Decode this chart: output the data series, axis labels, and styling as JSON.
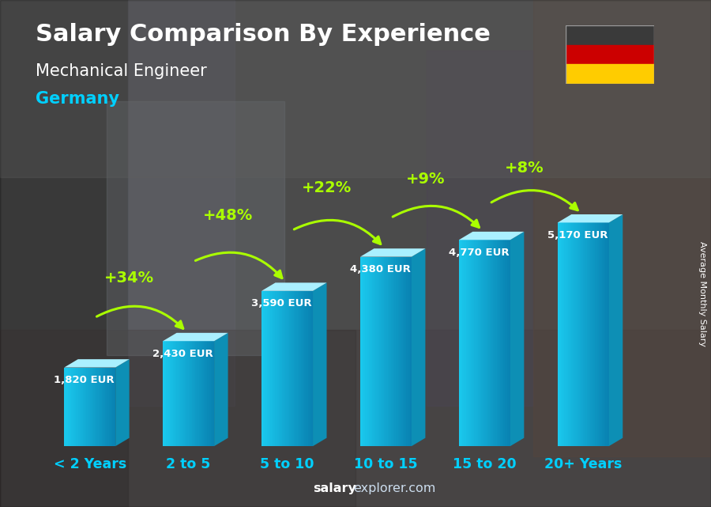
{
  "title_line1": "Salary Comparison By Experience",
  "title_line2": "Mechanical Engineer",
  "title_line3": "Germany",
  "categories": [
    "< 2 Years",
    "2 to 5",
    "5 to 10",
    "10 to 15",
    "15 to 20",
    "20+ Years"
  ],
  "values": [
    1820,
    2430,
    3590,
    4380,
    4770,
    5170
  ],
  "value_labels": [
    "1,820 EUR",
    "2,430 EUR",
    "3,590 EUR",
    "4,380 EUR",
    "4,770 EUR",
    "5,170 EUR"
  ],
  "pct_changes": [
    null,
    "+34%",
    "+48%",
    "+22%",
    "+9%",
    "+8%"
  ],
  "bar_color_front": "#1ac8ed",
  "bar_color_top": "#aaf0ff",
  "bar_color_side": "#0d8fb5",
  "text_color_white": "#ffffff",
  "text_color_cyan": "#00d0ff",
  "text_color_green": "#aaff00",
  "ylabel": "Average Monthly Salary",
  "footer_bold": "salary",
  "footer_normal": "explorer.com",
  "flag_dark": "#3a3a3a",
  "flag_red": "#cc0000",
  "flag_gold": "#ffcc00",
  "bg_color": "#7a7a7a",
  "ylim": [
    0,
    6800
  ]
}
